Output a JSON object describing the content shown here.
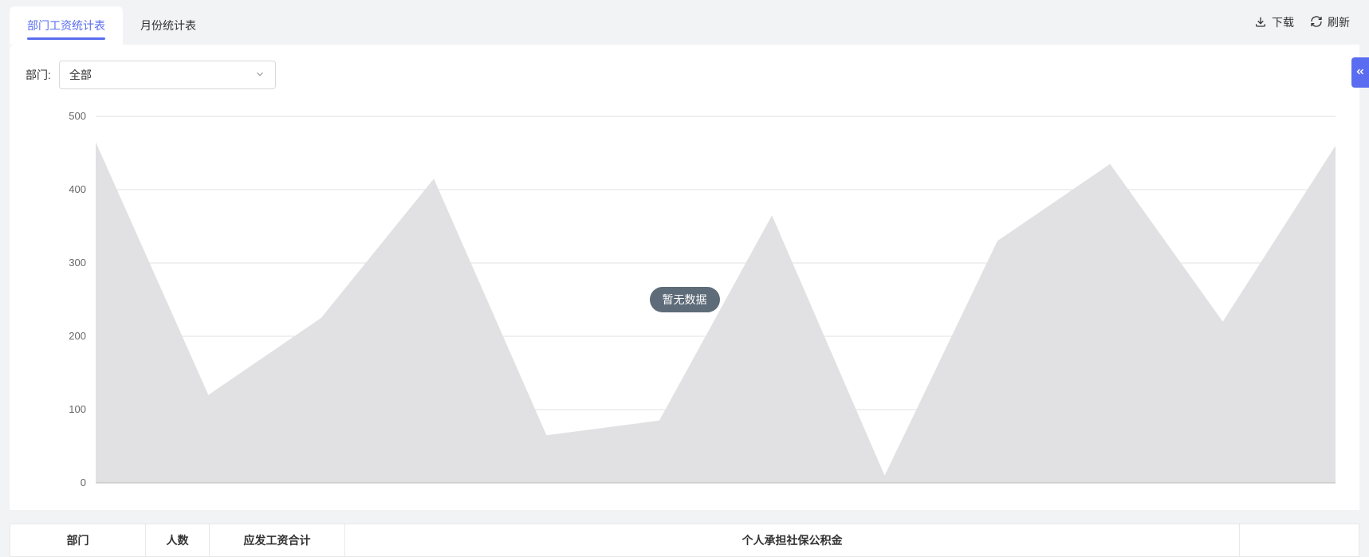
{
  "tabs": [
    {
      "label": "部门工资统计表",
      "active": true
    },
    {
      "label": "月份统计表",
      "active": false
    }
  ],
  "toolbar": {
    "download_label": "下载",
    "refresh_label": "刷新"
  },
  "filter": {
    "label": "部门:",
    "selected": "全部"
  },
  "chart": {
    "type": "area",
    "ylim": [
      0,
      500
    ],
    "ytick_step": 100,
    "yticks": [
      0,
      100,
      200,
      300,
      400,
      500
    ],
    "values": [
      465,
      120,
      225,
      415,
      65,
      85,
      365,
      10,
      330,
      435,
      220,
      460
    ],
    "area_color": "#e1e1e3",
    "grid_color": "#e0e0e0",
    "axis_color": "#bbbbbb",
    "tick_font_color": "#666666",
    "tick_fontsize": 13,
    "background_color": "#ffffff",
    "no_data_label": "暂无数据",
    "pill_bg": "#5e6b78",
    "pill_fg": "#ffffff"
  },
  "table": {
    "columns_row1": {
      "dept": "部门",
      "count": "人数",
      "gross": "应发工资合计",
      "personal_group": "个人承担社保公积金"
    }
  },
  "colors": {
    "page_bg": "#f2f3f5",
    "accent": "#5a6df0",
    "border": "#e8e8e8"
  }
}
